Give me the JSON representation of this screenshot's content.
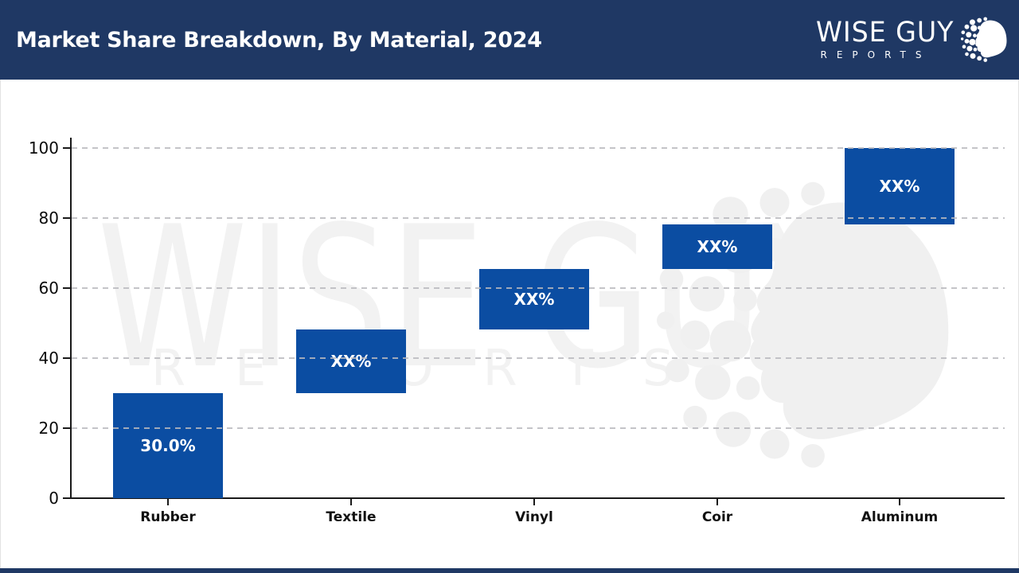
{
  "header": {
    "title": "Market Share Breakdown, By Material, 2024",
    "logo": {
      "brand": "WISE GUY",
      "sub": "REPORTS"
    }
  },
  "watermark": {
    "line1": "WISE GUY",
    "line2": "REPORTS"
  },
  "chart_data": {
    "type": "bar",
    "subtype": "waterfall",
    "title": "Market Share Breakdown, By Material, 2024",
    "categories": [
      "Rubber",
      "Textile",
      "Vinyl",
      "Coir",
      "Aluminum"
    ],
    "segments": [
      {
        "category": "Rubber",
        "start": 0,
        "end": 30.0,
        "value": 30.0,
        "label": "30.0%"
      },
      {
        "category": "Textile",
        "start": 30.0,
        "end": 48.2,
        "value": 18.2,
        "label": "XX%"
      },
      {
        "category": "Vinyl",
        "start": 48.2,
        "end": 65.4,
        "value": 17.2,
        "label": "XX%"
      },
      {
        "category": "Coir",
        "start": 65.4,
        "end": 78.2,
        "value": 12.8,
        "label": "XX%"
      },
      {
        "category": "Aluminum",
        "start": 78.2,
        "end": 100.0,
        "value": 21.8,
        "label": "XX%"
      }
    ],
    "y_ticks": [
      0,
      20,
      40,
      60,
      80,
      100
    ],
    "ylim": [
      0,
      103
    ],
    "xlabel": "",
    "ylabel": "",
    "grid": "horizontal-dashed",
    "legend": "none",
    "bar_color": "#0b4da2",
    "bar_label_color": "#ffffff"
  },
  "colors": {
    "header_bg": "#1f3864",
    "footer_bg": "#1f3864",
    "bar": "#0b4da2",
    "grid": "#bcbcc0",
    "axis": "#1a1a1a",
    "watermark": "#f2f2f2"
  }
}
